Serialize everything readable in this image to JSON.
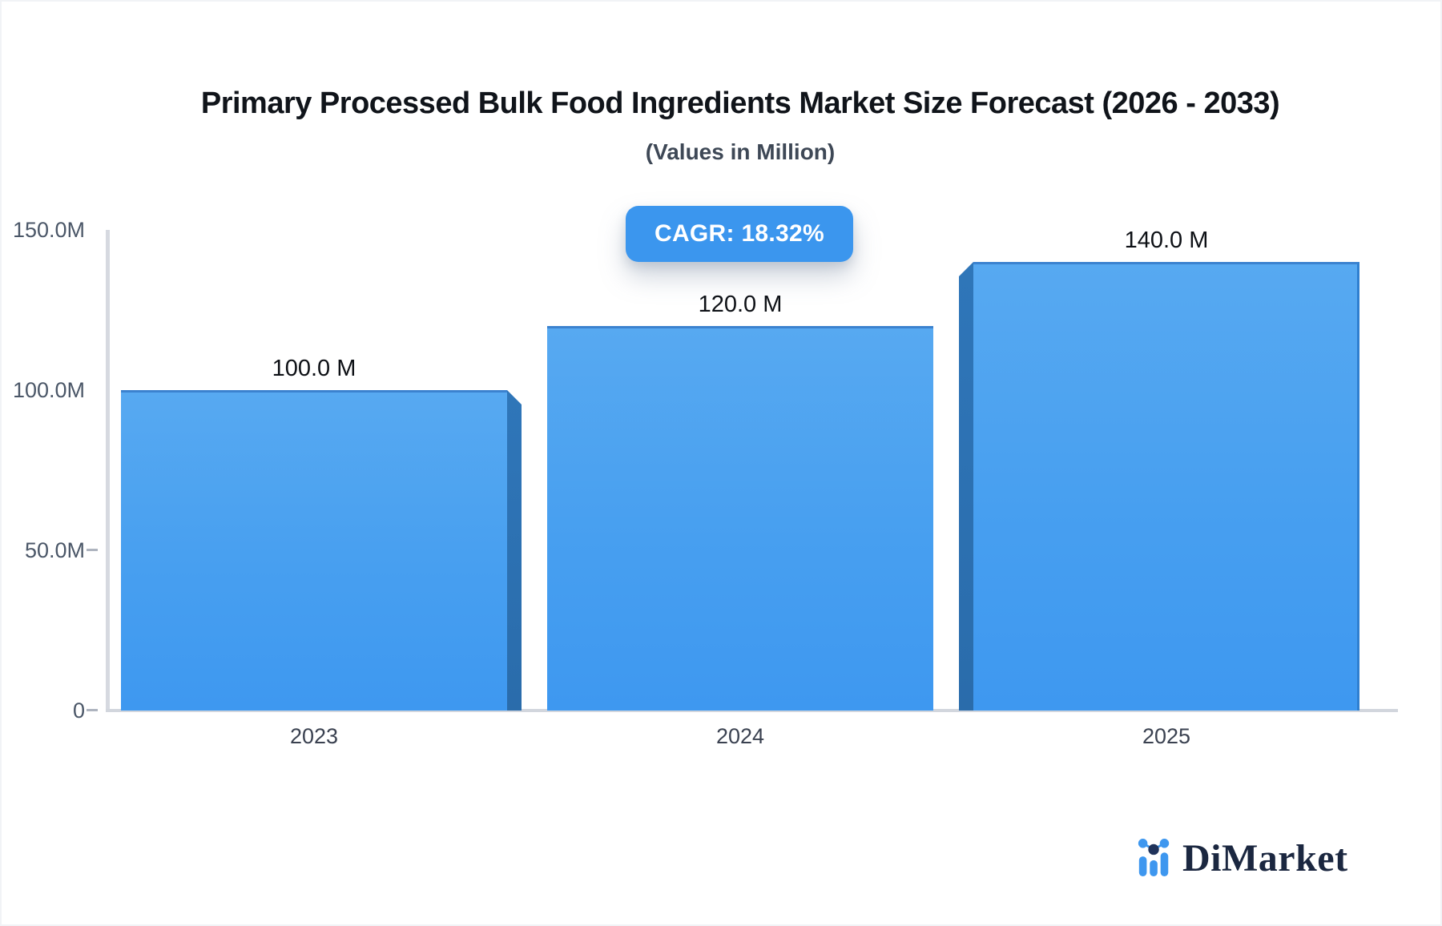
{
  "chart_data": {
    "type": "bar",
    "title": "Primary Processed Bulk Food Ingredients Market Size Forecast (2026 - 2033)",
    "subtitle": "(Values in Million)",
    "cagr_label": "CAGR: 18.32%",
    "unit": "Million",
    "categories": [
      "2023",
      "2024",
      "2025"
    ],
    "values": [
      100,
      120,
      140
    ],
    "bar_labels": [
      "100.0 M",
      "120.0 M",
      "140.0 M"
    ],
    "y_ticks": [
      {
        "label": "150.0M",
        "value": 150,
        "dash": false
      },
      {
        "label": "100.0M",
        "value": 100,
        "dash": false
      },
      {
        "label": "50.0M",
        "value": 50,
        "dash": true
      },
      {
        "label": "0",
        "value": 0,
        "dash": true
      }
    ],
    "ylim": [
      0,
      150
    ],
    "grid": false,
    "legend": false
  },
  "brand": {
    "logo_text": "DiMarket"
  },
  "colors": {
    "bar_blue": "#3e98f0",
    "bar_blue_light": "#57a9f1",
    "bar_side_blue": "#2d72b4",
    "badge_blue": "#3b96ee",
    "axis_gray": "#d4d7de",
    "label_slate": "#4b5768",
    "title_dark": "#10141a",
    "brand_navy": "#1b2740",
    "logo_icon_blue": "#3e97ef",
    "logo_icon_navy": "#20335b"
  }
}
